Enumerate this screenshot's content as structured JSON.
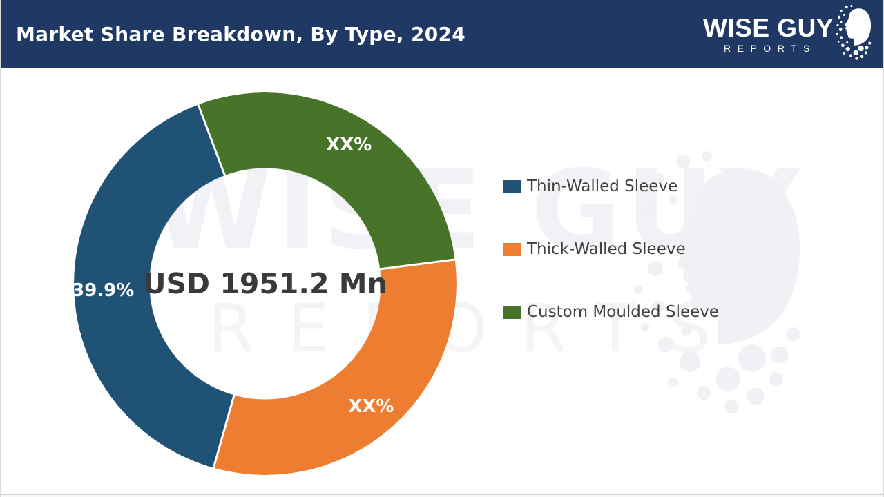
{
  "header": {
    "title": "Market Share Breakdown, By Type, 2024",
    "bg_color": "#203864",
    "logo": {
      "wordmark": "WISE GUY",
      "subtext": "REPORTS"
    }
  },
  "watermark": {
    "line1": "WISE GUY",
    "line2": "REPORTS"
  },
  "chart_data": {
    "type": "pie",
    "subtype": "donut",
    "title": "Market Share Breakdown, By Type, 2024",
    "center_label": "USD 1951.2 Mn",
    "start_angle_deg": -20.6,
    "legend_position": "right",
    "slices": [
      {
        "label": "Custom Moulded Sleeve",
        "value_pct": 28.7,
        "value_display": "XX%",
        "color": "#48742a"
      },
      {
        "label": "Thick-Walled Sleeve",
        "value_pct": 31.4,
        "value_display": "XX%",
        "color": "#ed7d31"
      },
      {
        "label": "Thin-Walled Sleeve",
        "value_pct": 39.9,
        "value_display": "39.9%",
        "color": "#205276"
      }
    ],
    "legend": [
      {
        "label": "Thin-Walled Sleeve",
        "color": "#205276"
      },
      {
        "label": "Thick-Walled Sleeve",
        "color": "#ed7d31"
      },
      {
        "label": "Custom Moulded Sleeve",
        "color": "#48742a"
      }
    ]
  }
}
